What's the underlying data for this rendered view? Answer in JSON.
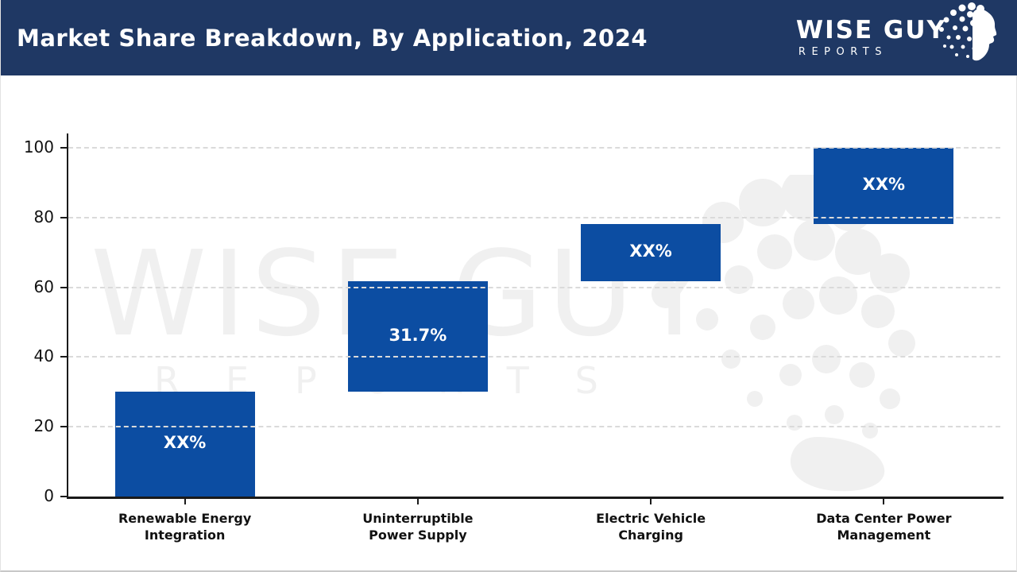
{
  "header": {
    "title": "Market Share Breakdown, By Application, 2024",
    "logo": {
      "line1": "WISE GUY",
      "line2": "REPORTS"
    }
  },
  "watermark": {
    "line1": "WISE GUY",
    "line2": "REPORTS"
  },
  "colors": {
    "header_bg": "#1F3864",
    "bar": "#0C4DA2",
    "bar_label": "#FFFFFF",
    "gridline": "#DADADA",
    "axis": "#1A1A1A",
    "watermark": "#F0F0F0"
  },
  "chart_data": {
    "type": "bar",
    "subtype": "waterfall",
    "title": "Market Share Breakdown, By Application, 2024",
    "categories": [
      "Renewable Energy Integration",
      "Uninterruptible Power Supply",
      "Electric Vehicle Charging",
      "Data Center Power Management"
    ],
    "category_label_lines": [
      [
        "Renewable Energy",
        "Integration"
      ],
      [
        "Uninterruptible",
        "Power Supply"
      ],
      [
        "Electric Vehicle",
        "Charging"
      ],
      [
        "Data Center Power",
        "Management"
      ]
    ],
    "bars": [
      {
        "category": "Renewable Energy Integration",
        "label": "XX%",
        "start": 0,
        "end": 30,
        "value": 30
      },
      {
        "category": "Uninterruptible Power Supply",
        "label": "31.7%",
        "start": 30,
        "end": 61.7,
        "value": 31.7
      },
      {
        "category": "Electric Vehicle Charging",
        "label": "XX%",
        "start": 61.7,
        "end": 78.1,
        "value": 16.4
      },
      {
        "category": "Data Center Power Management",
        "label": "XX%",
        "start": 78.1,
        "end": 100,
        "value": 21.9
      }
    ],
    "ylim": [
      0,
      100
    ],
    "yticks": [
      0,
      20,
      40,
      60,
      80,
      100
    ],
    "xlabel": "",
    "ylabel": "",
    "grid": "horizontal-dashed",
    "legend": "none"
  }
}
